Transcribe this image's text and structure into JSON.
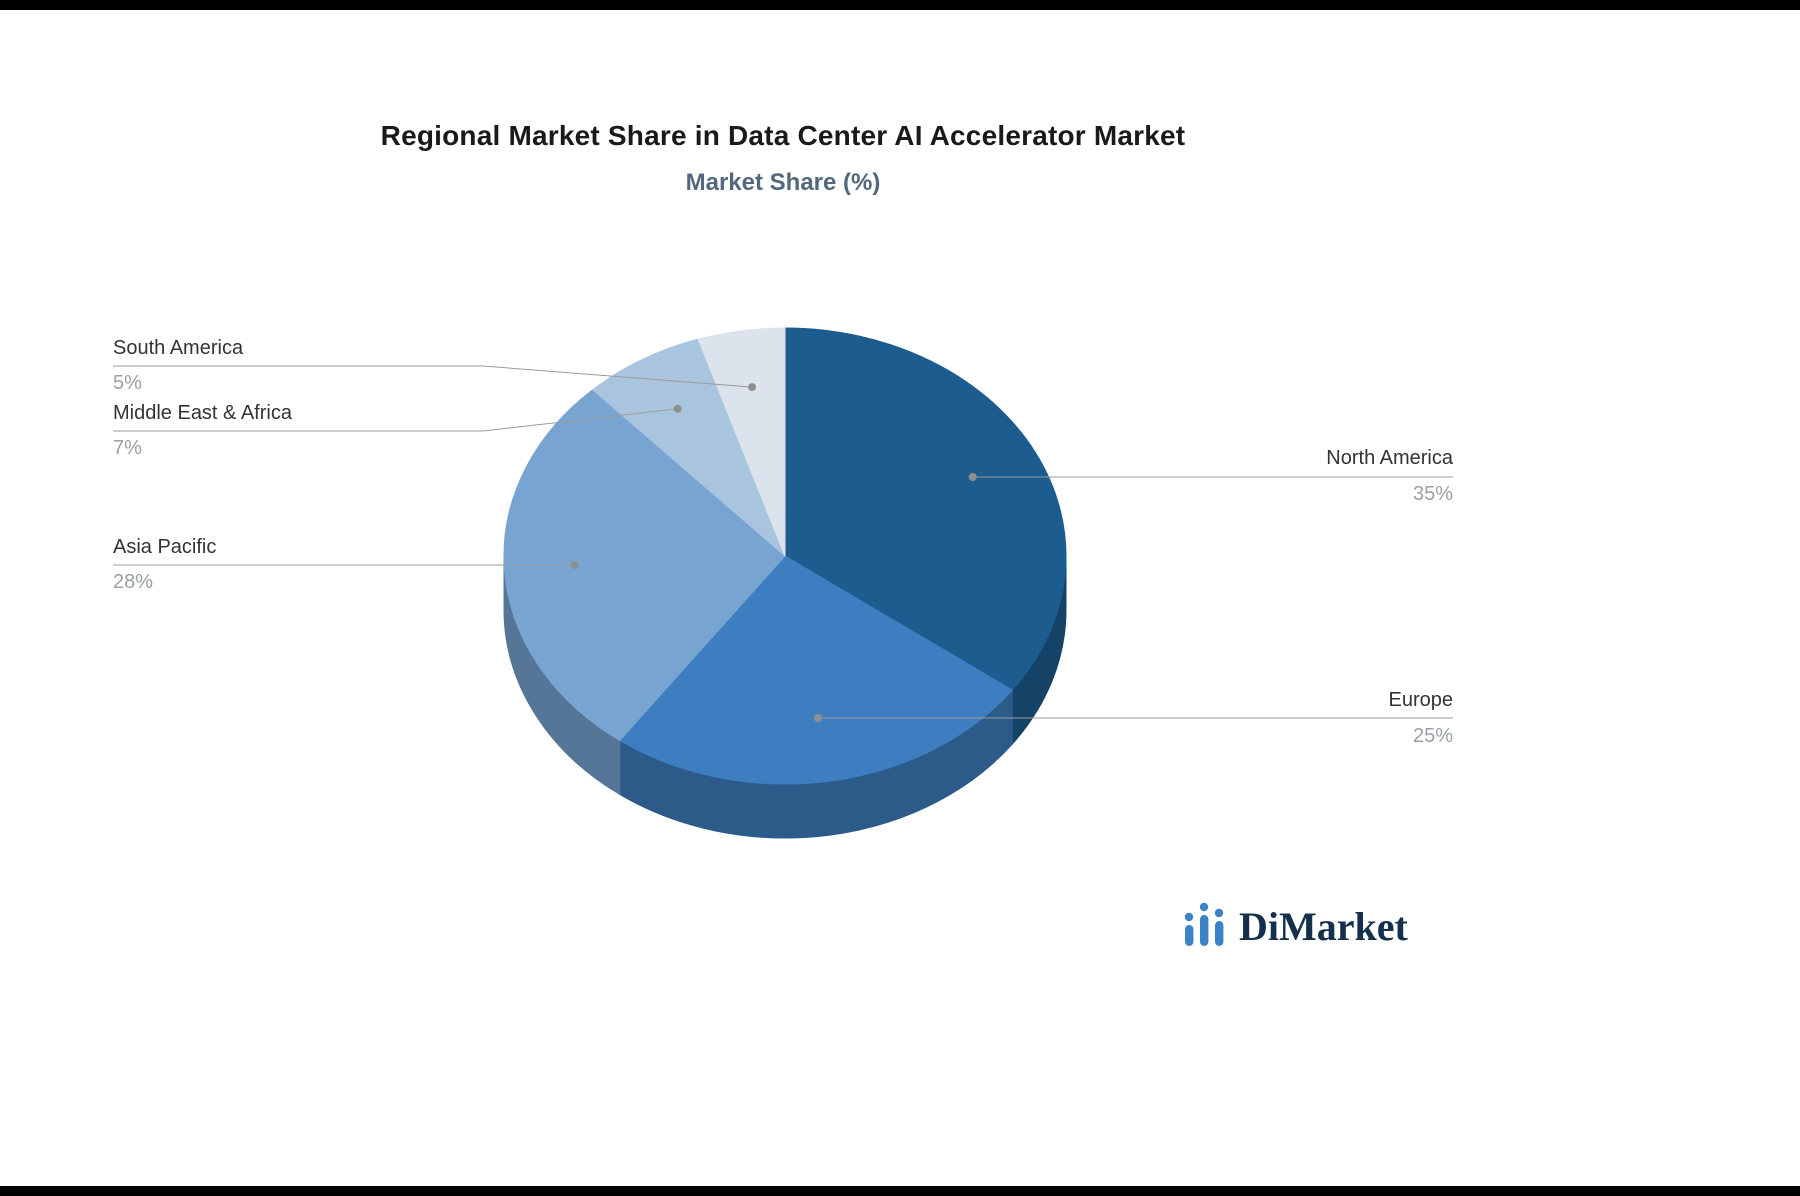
{
  "page": {
    "background": "#ffffff"
  },
  "chart_data": {
    "type": "pie",
    "title": "Regional Market Share in Data Center AI Accelerator Market",
    "subtitle": "Market Share (%)",
    "unit": "%",
    "style": "3d-pie",
    "legend_position": "none",
    "label_style": "leader-lines",
    "slices": [
      {
        "label": "North America",
        "value": 35,
        "pct_label": "35%",
        "color": "#1d5c8f"
      },
      {
        "label": "Europe",
        "value": 25,
        "pct_label": "25%",
        "color": "#3d7ec0"
      },
      {
        "label": "Asia Pacific",
        "value": 28,
        "pct_label": "28%",
        "color": "#78a4d2"
      },
      {
        "label": "Middle East & Africa",
        "value": 7,
        "pct_label": "7%",
        "color": "#a9c4de"
      },
      {
        "label": "South America",
        "value": 5,
        "pct_label": "5%",
        "color": "#dce3ec"
      }
    ],
    "leader_line_color": "#9b9b9b",
    "leader_dot_color": "#8f8f8f"
  },
  "branding": {
    "logo_text": "DiMarket",
    "logo_icon": "bar-chart-icon",
    "logo_text_color": "#14304c",
    "logo_icon_color": "#3b82c6"
  }
}
